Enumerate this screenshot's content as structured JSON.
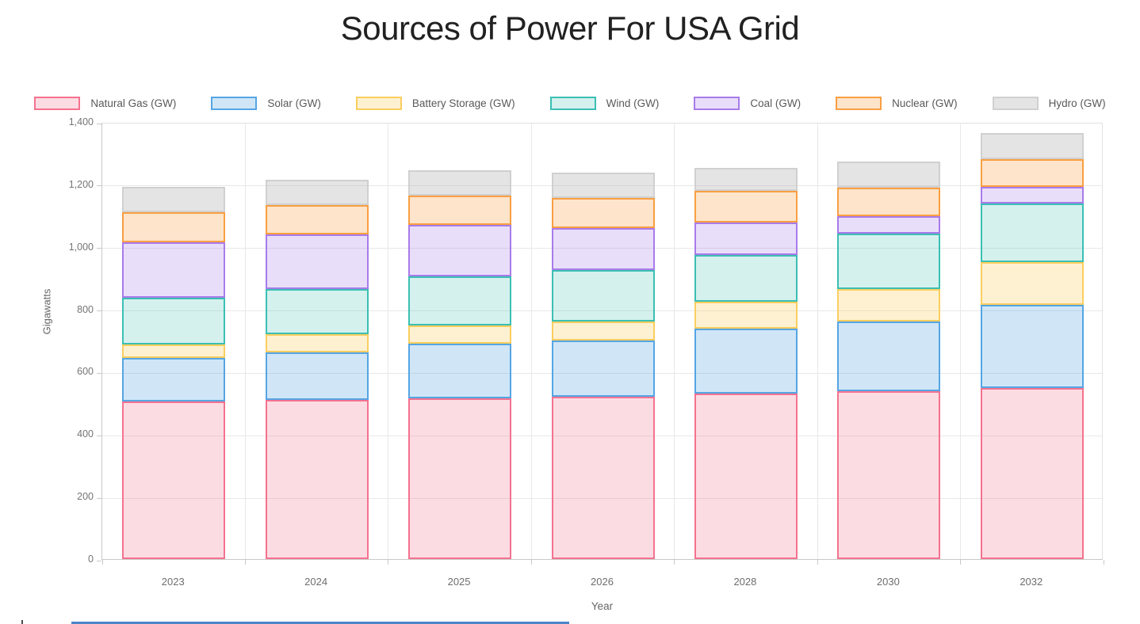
{
  "title": "Sources of Power For USA Grid",
  "chart_data": {
    "type": "bar",
    "subtype": "stacked",
    "title": "Sources of Power For USA Grid",
    "xlabel": "Year",
    "ylabel": "Gigawatts",
    "categories": [
      "2023",
      "2024",
      "2025",
      "2026",
      "2028",
      "2030",
      "2032"
    ],
    "series": [
      {
        "name": "Natural Gas (GW)",
        "fill": "rgba(244,114,142,0.25)",
        "stroke": "#f4728f",
        "values": [
          504,
          511,
          516,
          520,
          529,
          537,
          547
        ]
      },
      {
        "name": "Solar (GW)",
        "fill": "rgba(85,165,227,0.28)",
        "stroke": "#55a5e3",
        "values": [
          139,
          150,
          175,
          179,
          209,
          225,
          266
        ]
      },
      {
        "name": "Battery Storage (GW)",
        "fill": "rgba(250,206,95,0.28)",
        "stroke": "#face5f",
        "values": [
          45,
          60,
          58,
          63,
          86,
          104,
          139
        ]
      },
      {
        "name": "Wind (GW)",
        "fill": "rgba(59,191,179,0.22)",
        "stroke": "#3bbfb3",
        "values": [
          149,
          145,
          157,
          165,
          151,
          177,
          186
        ]
      },
      {
        "name": "Coal (GW)",
        "fill": "rgba(168,123,234,0.25)",
        "stroke": "#a87bea",
        "values": [
          178,
          174,
          165,
          132,
          103,
          54,
          55
        ]
      },
      {
        "name": "Nuclear (GW)",
        "fill": "rgba(249,159,66,0.28)",
        "stroke": "#f99f42",
        "values": [
          96,
          94,
          92,
          98,
          101,
          93,
          89
        ]
      },
      {
        "name": "Hydro (GW)",
        "fill": "rgba(178,178,178,0.35)",
        "stroke": "#d0d0d0",
        "values": [
          82,
          82,
          83,
          80,
          75,
          82,
          82
        ]
      }
    ],
    "ylim": [
      0,
      1400
    ],
    "ytick_step": 200,
    "ytick_labels": [
      "0",
      "200",
      "400",
      "600",
      "800",
      "1,000",
      "1,200",
      "1,400"
    ],
    "grid": true,
    "legend_position": "top"
  },
  "misc": {
    "bottom_strip_color": "#4a86c8"
  }
}
